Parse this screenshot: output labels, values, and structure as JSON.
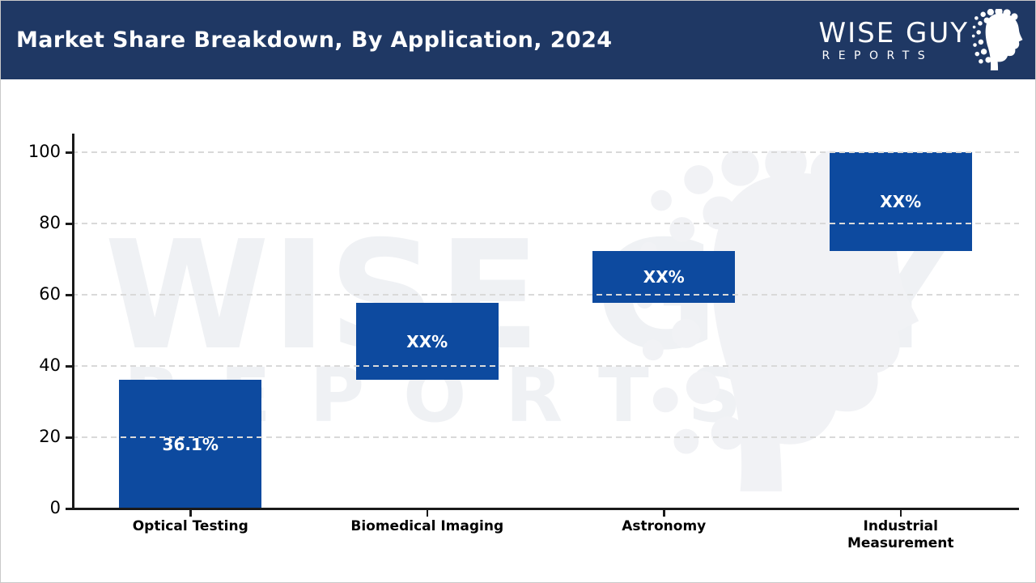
{
  "header": {
    "title": "Market Share Breakdown, By Application, 2024",
    "logo": {
      "line1": "WISE GUY",
      "line2": "REPORTS"
    }
  },
  "watermark": {
    "line1": "WISE GUY",
    "line2": "REPORTS"
  },
  "chart_data": {
    "type": "bar",
    "subtype": "waterfall",
    "title": "Market Share Breakdown, By Application, 2024",
    "categories": [
      "Optical Testing",
      "Biomedical Imaging",
      "Astronomy",
      "Industrial\nMeasurement"
    ],
    "bars": [
      {
        "category": "Optical Testing",
        "label": "36.1%",
        "start": 0,
        "end": 36.1
      },
      {
        "category": "Biomedical Imaging",
        "label": "XX%",
        "start": 36.1,
        "end": 57.7
      },
      {
        "category": "Astronomy",
        "label": "XX%",
        "start": 57.7,
        "end": 72.3
      },
      {
        "category": "Industrial Measurement",
        "label": "XX%",
        "start": 72.3,
        "end": 100
      }
    ],
    "xlabel": "",
    "ylabel": "",
    "ylim": [
      0,
      105
    ],
    "yticks": [
      0,
      20,
      40,
      60,
      80,
      100
    ],
    "grid": "horizontal-dashed",
    "legend": "none",
    "bar_color": "#0d4a9f",
    "label_color": "#ffffff",
    "header_color": "#1f3864"
  }
}
